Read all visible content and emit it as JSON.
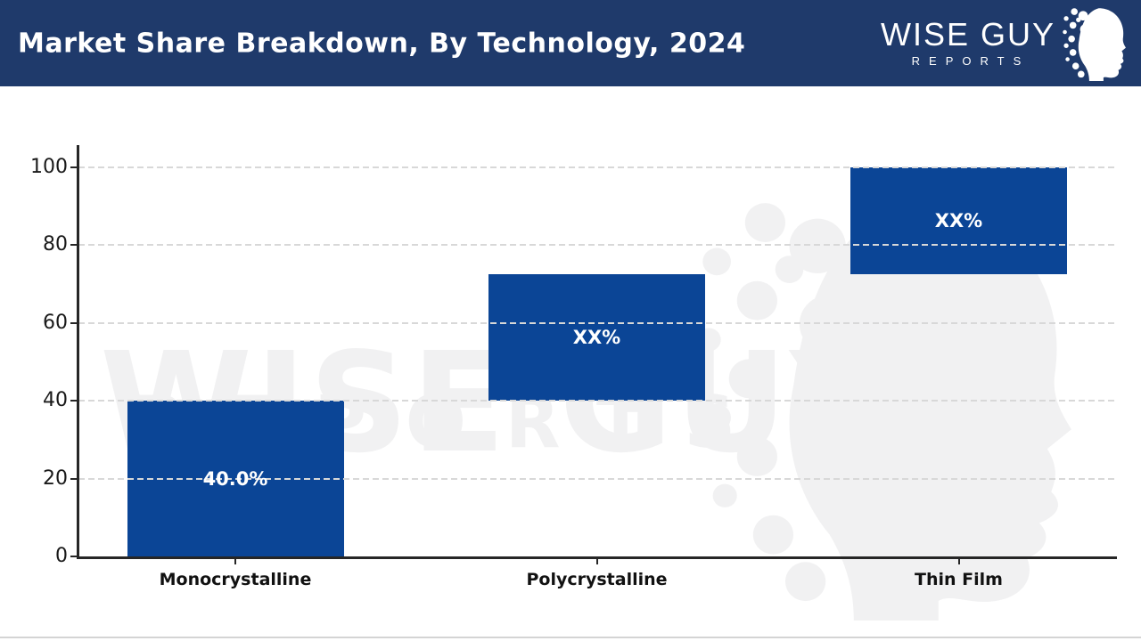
{
  "header": {
    "title": "Market Share Breakdown, By Technology, 2024",
    "logo": {
      "line1": "WISE GUY",
      "line2": "REPORTS"
    }
  },
  "watermark": {
    "line1": "WISE GUY",
    "line2": "REPORTS"
  },
  "chart_data": {
    "type": "bar",
    "variant": "stacked-waterfall",
    "title": "Market Share Breakdown, By Technology, 2024",
    "categories": [
      "Monocrystalline",
      "Polycrystalline",
      "Thin Film"
    ],
    "series": [
      {
        "name": "Monocrystalline",
        "start": 0,
        "end": 40,
        "value": 40.0,
        "label": "40.0%"
      },
      {
        "name": "Polycrystalline",
        "start": 40,
        "end": 72.5,
        "value": 32.5,
        "label": "XX%"
      },
      {
        "name": "Thin Film",
        "start": 72.5,
        "end": 100,
        "value": 27.5,
        "label": "XX%"
      }
    ],
    "xlabel": "",
    "ylabel": "",
    "y_ticks": [
      0,
      20,
      40,
      60,
      80,
      100
    ],
    "ylim": [
      0,
      105.7
    ],
    "grid": true,
    "grid_style": "dashed",
    "legend": "none",
    "bar_color": "#0b4596",
    "bar_label_color": "#ffffff"
  },
  "colors": {
    "header_bg": "#1f3a6b",
    "bar": "#0b4596",
    "gridline": "#d8d8d8",
    "watermark": "#f1f1f2",
    "axis": "#262626"
  }
}
